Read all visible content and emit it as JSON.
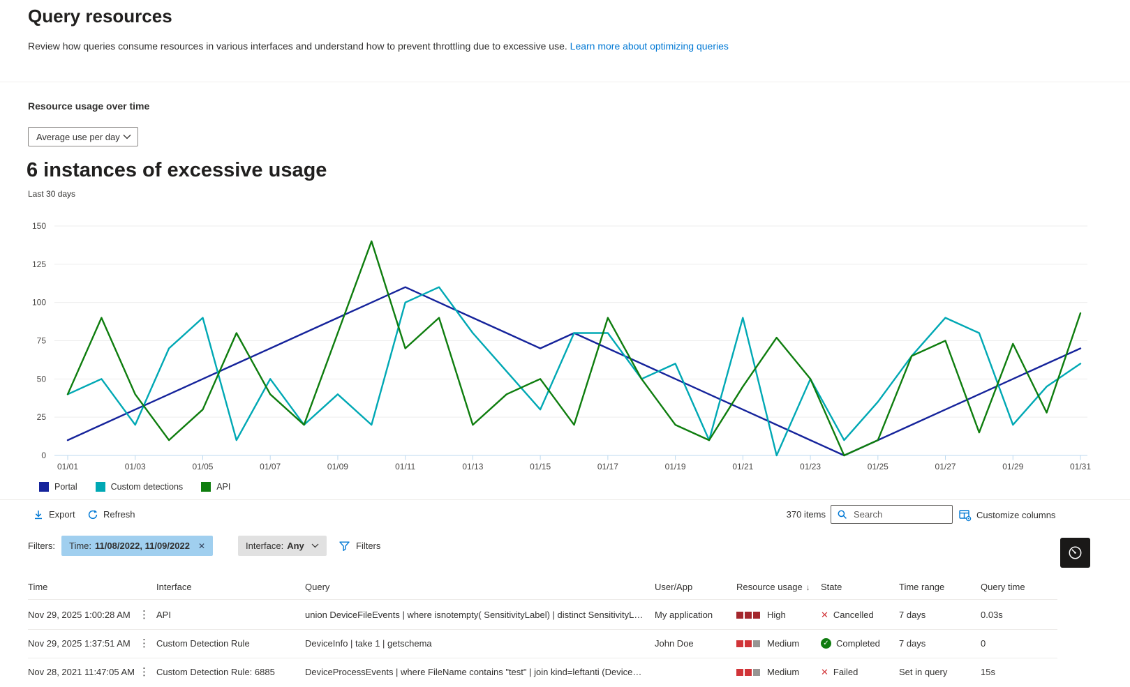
{
  "page": {
    "title": "Query resources",
    "description": "Review how queries consume resources in various interfaces and understand how to prevent throttling due to excessive use.",
    "learn_more_link": "Learn more about optimizing queries"
  },
  "usage_section": {
    "label": "Resource usage over time",
    "dropdown_value": "Average use per day",
    "heading": "6 instances of excessive usage",
    "subheading": "Last 30 days"
  },
  "chart_data": {
    "type": "line",
    "title": "6 instances of excessive usage",
    "subtitle": "Last 30 days",
    "x": [
      "01/01",
      "01/02",
      "01/03",
      "01/04",
      "01/05",
      "01/06",
      "01/07",
      "01/08",
      "01/09",
      "01/10",
      "01/11",
      "01/12",
      "01/13",
      "01/14",
      "01/15",
      "01/16",
      "01/17",
      "01/18",
      "01/19",
      "01/20",
      "01/21",
      "01/22",
      "01/23",
      "01/24",
      "01/25",
      "01/26",
      "01/27",
      "01/28",
      "01/29",
      "01/30",
      "01/31"
    ],
    "x_tick_labels": [
      "01/01",
      "01/03",
      "01/05",
      "01/07",
      "01/09",
      "01/11",
      "01/13",
      "01/15",
      "01/17",
      "01/19",
      "01/21",
      "01/23",
      "01/25",
      "01/27",
      "01/29",
      "01/31"
    ],
    "series": [
      {
        "name": "Portal",
        "color": "#15239b",
        "values": [
          10,
          20,
          30,
          40,
          50,
          60,
          70,
          80,
          90,
          100,
          110,
          100,
          90,
          80,
          70,
          80,
          70,
          60,
          50,
          40,
          30,
          20,
          10,
          0,
          10,
          20,
          30,
          40,
          50,
          60,
          70
        ]
      },
      {
        "name": "Custom detections",
        "color": "#00a8b4",
        "values": [
          40,
          50,
          20,
          70,
          90,
          10,
          50,
          20,
          40,
          20,
          100,
          110,
          80,
          55,
          30,
          80,
          80,
          50,
          60,
          10,
          90,
          0,
          50,
          10,
          35,
          65,
          90,
          80,
          20,
          45,
          60
        ]
      },
      {
        "name": "API",
        "color": "#0e7d0e",
        "values": [
          40,
          90,
          40,
          10,
          30,
          80,
          40,
          20,
          80,
          140,
          70,
          90,
          20,
          40,
          50,
          20,
          90,
          50,
          20,
          10,
          45,
          77,
          50,
          0,
          10,
          65,
          75,
          15,
          73,
          28,
          93
        ]
      }
    ],
    "ylim": [
      0,
      150
    ],
    "yticks": [
      0,
      25,
      50,
      75,
      100,
      125,
      150
    ],
    "grid": true,
    "legend_position": "bottom-left"
  },
  "toolbar": {
    "export_label": "Export",
    "refresh_label": "Refresh",
    "items_count": "370 items",
    "search_placeholder": "Search",
    "customize_columns_label": "Customize columns"
  },
  "filters": {
    "label": "Filters:",
    "time_chip": {
      "prefix": "Time:",
      "value": "11/08/2022, 11/09/2022",
      "close_glyph": "✕"
    },
    "interface_chip": {
      "prefix": "Interface:",
      "value": "Any"
    },
    "filters_button_label": "Filters"
  },
  "table": {
    "columns": [
      "Time",
      "Interface",
      "Query",
      "User/App",
      "Resource usage",
      "State",
      "Time range",
      "Query time"
    ],
    "sorted_column": "Resource usage",
    "sort_indicator": "↓",
    "rows": [
      {
        "time": "Nov 29, 2025 1:00:28 AM",
        "interface": "API",
        "query": "union DeviceFileEvents | where isnotempty( SensitivityLabel) | distinct SensitivityL…",
        "user": "My application",
        "usage": "High",
        "state": "Cancelled",
        "time_range": "7 days",
        "query_time": "0.03s"
      },
      {
        "time": "Nov 29, 2025 1:37:51 AM",
        "interface": "Custom Detection Rule",
        "query": "DeviceInfo | take 1 | getschema",
        "user": "John Doe",
        "usage": "Medium",
        "state": "Completed",
        "time_range": "7 days",
        "query_time": "0"
      },
      {
        "time": "Nov 28, 2021 11:47:05 AM",
        "interface": "Custom Detection Rule: 6885",
        "query": "DeviceProcessEvents | where FileName contains \"test\" | join kind=leftanti (Device…",
        "user": "",
        "usage": "Medium",
        "state": "Failed",
        "time_range": "Set in query",
        "query_time": "15s"
      }
    ]
  },
  "colors": {
    "accent_blue": "#0078d4",
    "chip_time_bg": "#a0cfef",
    "chip_interface_bg": "#e1e1e1",
    "usage_high": "#a4262c",
    "usage_medium": "#d13438",
    "usage_inactive": "#979593",
    "state_completed": "#107c10",
    "state_failed": "#d13438",
    "gridline": "#ededed",
    "axis_line": "#bcd9ef",
    "floating_button_bg": "#1a1918"
  },
  "icons": {
    "export": "download-arrow-icon",
    "refresh": "refresh-icon",
    "search": "magnifier-icon",
    "customize_columns": "table-gear-icon",
    "filters": "funnel-icon",
    "floating_button": "gauge-icon",
    "row_menu": "vertical-ellipsis-icon",
    "chip_close": "close-x-icon",
    "dropdown": "chevron-down-icon"
  }
}
